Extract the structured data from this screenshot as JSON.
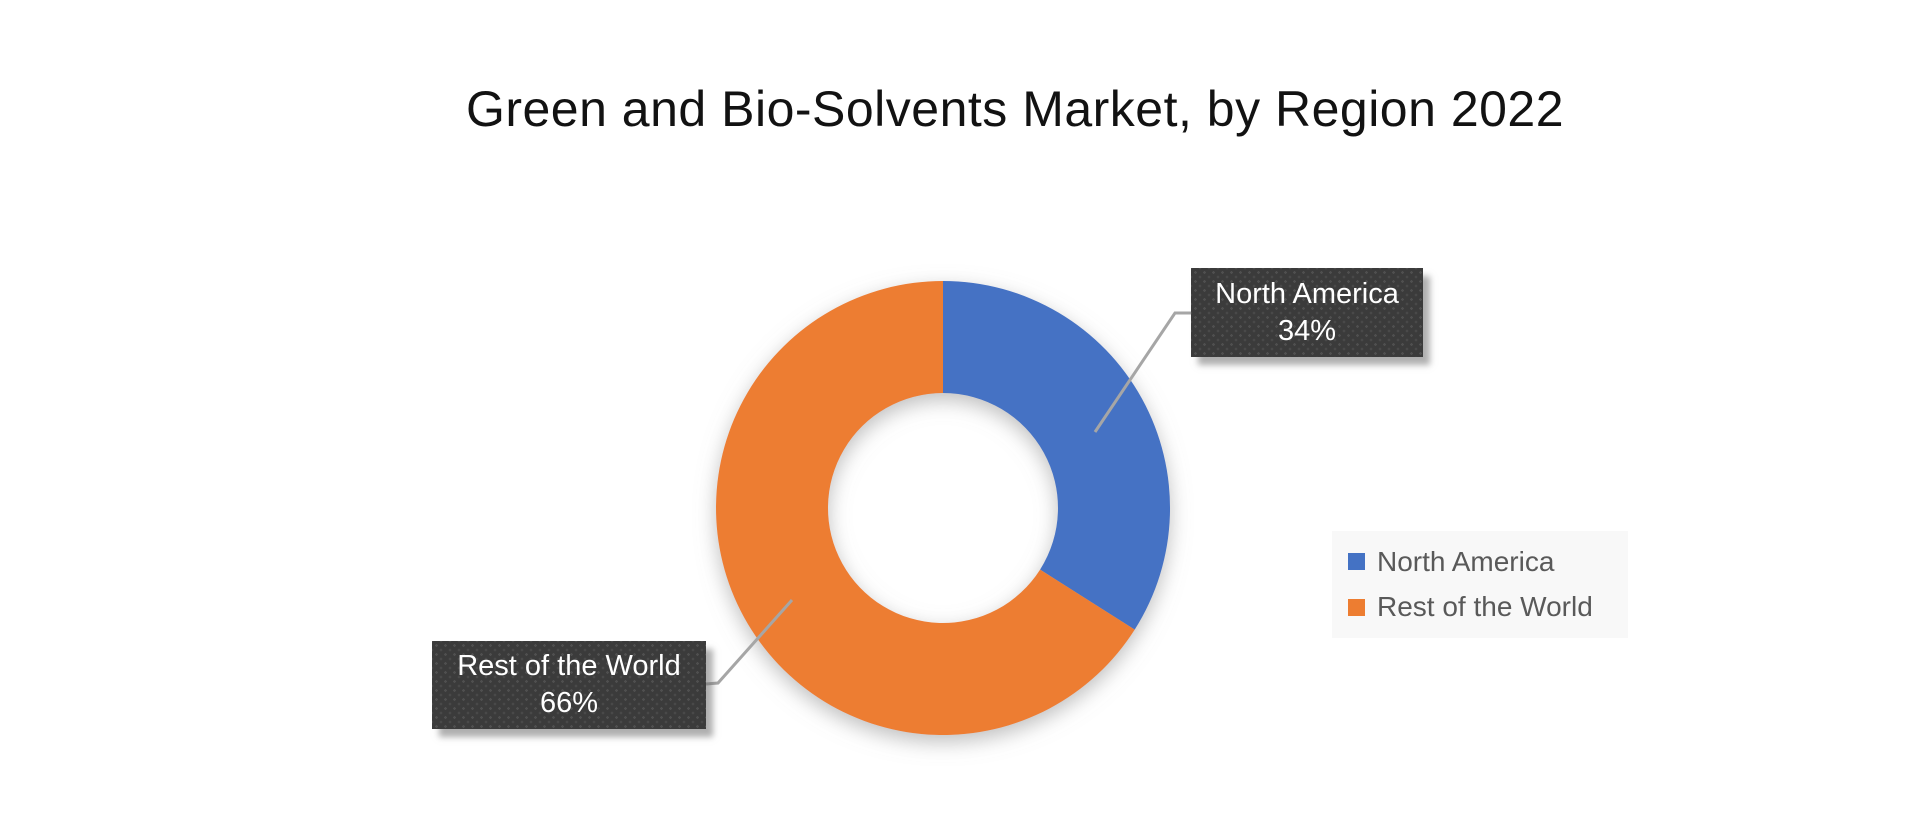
{
  "title": {
    "text": "Green and Bio-Solvents Market, by Region 2022"
  },
  "chart_data": {
    "type": "pie",
    "subtype": "donut",
    "title": "Green and Bio-Solvents Market, by Region 2022",
    "categories": [
      "North America",
      "Rest of the World"
    ],
    "values": [
      34,
      66
    ],
    "unit": "percent",
    "series_colors": [
      "#4472C4",
      "#ED7D31"
    ],
    "start_angle_deg": 0,
    "direction": "clockwise",
    "donut_hole_ratio": 0.51,
    "legend_position": "right",
    "data_labels": [
      {
        "label": "North America",
        "value_text": "34%"
      },
      {
        "label": "Rest of the World",
        "value_text": "66%"
      }
    ]
  },
  "legend": {
    "items": [
      {
        "label": "North America",
        "color": "#4472C4",
        "marker": "square"
      },
      {
        "label": "Rest of the World",
        "color": "#ED7D31",
        "marker": "square"
      }
    ]
  },
  "style_colors": {
    "callout_bg": "#3B3B3B",
    "callout_text": "#FFFFFF",
    "leader_line": "#A6A6A6",
    "legend_text": "#595959",
    "legend_bg": "#F8F8F8",
    "title_text": "#121212",
    "page_bg": "#FFFFFF"
  }
}
